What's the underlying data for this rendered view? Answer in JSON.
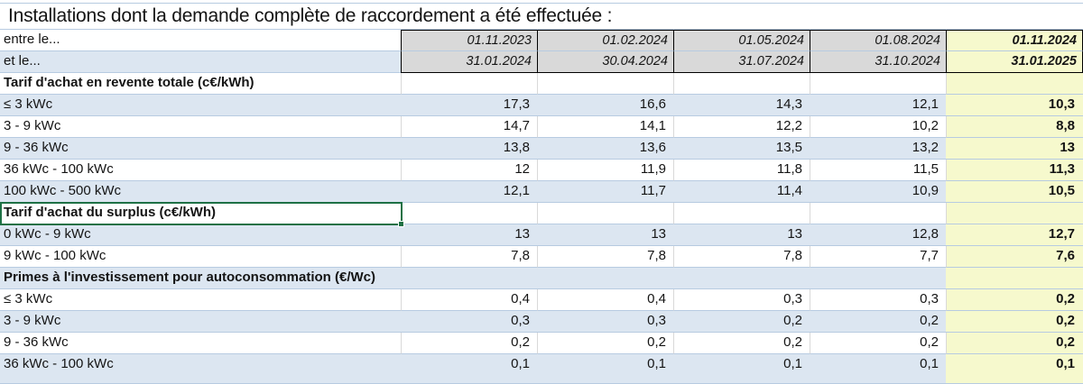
{
  "title": "Installations dont la demande complète de raccordement a été effectuée :",
  "header": {
    "row1_label": "entre le...",
    "row2_label": "et le...",
    "start_dates": [
      "01.11.2023",
      "01.02.2024",
      "01.05.2024",
      "01.08.2024",
      "01.11.2024"
    ],
    "end_dates": [
      "31.01.2024",
      "30.04.2024",
      "31.07.2024",
      "31.10.2024",
      "31.01.2025"
    ]
  },
  "sections": [
    {
      "header": "Tarif d'achat en revente totale (c€/kWh)",
      "selected": false,
      "rows": [
        {
          "label": "≤ 3 kWc",
          "values": [
            "17,3",
            "16,6",
            "14,3",
            "12,1",
            "10,3"
          ]
        },
        {
          "label": "3  - 9 kWc",
          "values": [
            "14,7",
            "14,1",
            "12,2",
            "10,2",
            "8,8"
          ]
        },
        {
          "label": "9 - 36 kWc",
          "values": [
            "13,8",
            "13,6",
            "13,5",
            "13,2",
            "13"
          ]
        },
        {
          "label": "36 kWc - 100 kWc",
          "values": [
            "12",
            "11,9",
            "11,8",
            "11,5",
            "11,3"
          ]
        },
        {
          "label": "100 kWc - 500 kWc",
          "values": [
            "12,1",
            "11,7",
            "11,4",
            "10,9",
            "10,5"
          ]
        }
      ]
    },
    {
      "header": "Tarif d'achat du surplus (c€/kWh)",
      "selected": true,
      "rows": [
        {
          "label": "0 kWc - 9 kWc",
          "values": [
            "13",
            "13",
            "13",
            "12,8",
            "12,7"
          ]
        },
        {
          "label": "9 kWc - 100 kWc",
          "values": [
            "7,8",
            "7,8",
            "7,8",
            "7,7",
            "7,6"
          ]
        }
      ]
    },
    {
      "header": "Primes à l'investissement pour autoconsommation (€/Wc)",
      "selected": false,
      "rows": [
        {
          "label": "≤ 3 kWc",
          "values": [
            "0,4",
            "0,4",
            "0,3",
            "0,3",
            "0,2"
          ]
        },
        {
          "label": "3  - 9 kWc",
          "values": [
            "0,3",
            "0,3",
            "0,2",
            "0,2",
            "0,2"
          ]
        },
        {
          "label": "9 - 36 kWc",
          "values": [
            "0,2",
            "0,2",
            "0,2",
            "0,2",
            "0,2"
          ]
        },
        {
          "label": "36 kWc - 100 kWc",
          "values": [
            "0,1",
            "0,1",
            "0,1",
            "0,1",
            "0,1"
          ]
        }
      ]
    }
  ],
  "colors": {
    "band_blue": "#dce6f1",
    "grid_blue": "#b7cbe1",
    "header_gray": "#d9d9d9",
    "highlight_yellow": "#f6f9cd",
    "selection_green": "#1e7145"
  }
}
